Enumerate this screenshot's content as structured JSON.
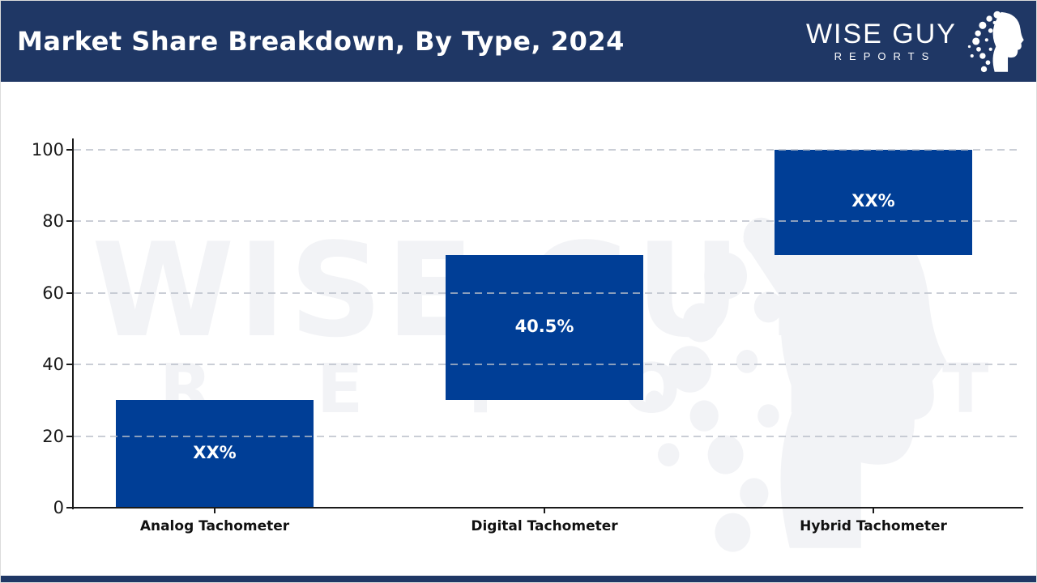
{
  "header": {
    "title": "Market Share Breakdown, By Type, 2024",
    "logo": {
      "line1": "WISE GUY",
      "line2": "REPORTS"
    }
  },
  "watermark": {
    "line1": "WISE GUY",
    "line2": "R E P O R T S"
  },
  "colors": {
    "header_navy": "#1F3765",
    "bar_blue": "#003E96",
    "grid_gray": "#D9D9D9",
    "axis_black": "#1A1A1A",
    "watermark_gray": "#F2F3F6",
    "bar_label_white": "#FFFFFF"
  },
  "chart_data": {
    "type": "bar",
    "subtype": "floating-segment (waterfall-style market share breakdown)",
    "title": "Market Share Breakdown, By Type, 2024",
    "categories": [
      "Analog Tachometer",
      "Digital Tachometer",
      "Hybrid Tachometer"
    ],
    "segments": [
      {
        "category": "Analog Tachometer",
        "start": 0,
        "end": 30,
        "label": "XX%"
      },
      {
        "category": "Digital Tachometer",
        "start": 30,
        "end": 70.5,
        "label": "40.5%"
      },
      {
        "category": "Hybrid Tachometer",
        "start": 70.5,
        "end": 100,
        "label": "XX%"
      }
    ],
    "xlabel": "",
    "ylabel": "",
    "yticks": [
      0,
      20,
      40,
      60,
      80,
      100
    ],
    "ylim": [
      0,
      105
    ],
    "grid": "horizontal dashed",
    "legend": "none"
  }
}
